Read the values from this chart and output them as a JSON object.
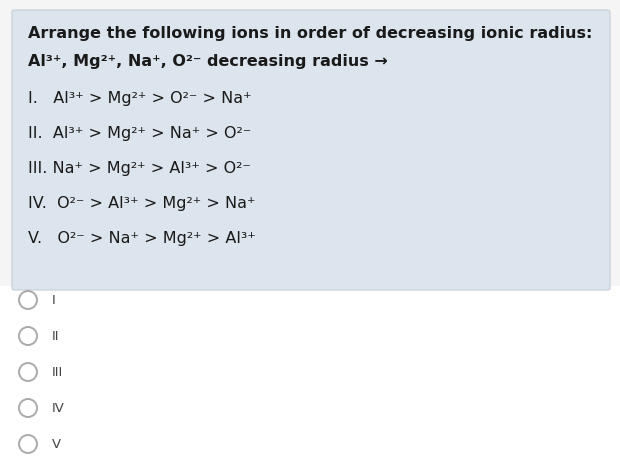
{
  "page_bg": "#f5f5f5",
  "box_bg": "#dce4ed",
  "box_edge": "#c5cdd6",
  "title_line1": "Arrange the following ions in order of decreasing ionic radius:",
  "title_line2": "Al³⁺, Mg²⁺, Na⁺, O²⁻ decreasing radius →",
  "options": [
    "I.   Al³⁺ > Mg²⁺ > O²⁻ > Na⁺",
    "II.  Al³⁺ > Mg²⁺ > Na⁺ > O²⁻",
    "III. Na⁺ > Mg²⁺ > Al³⁺ > O²⁻",
    "IV.  O²⁻ > Al³⁺ > Mg²⁺ > Na⁺",
    "V.   O²⁻ > Na⁺ > Mg²⁺ > Al³⁺"
  ],
  "radio_labels": [
    "I",
    "II",
    "III",
    "IV",
    "V"
  ],
  "title_fontsize": 11.5,
  "option_fontsize": 11.5,
  "radio_fontsize": 9.5,
  "text_color": "#1a1a1a",
  "radio_circle_color": "#aaaaaa",
  "radio_label_color": "#444444",
  "below_box_bg": "#ffffff"
}
